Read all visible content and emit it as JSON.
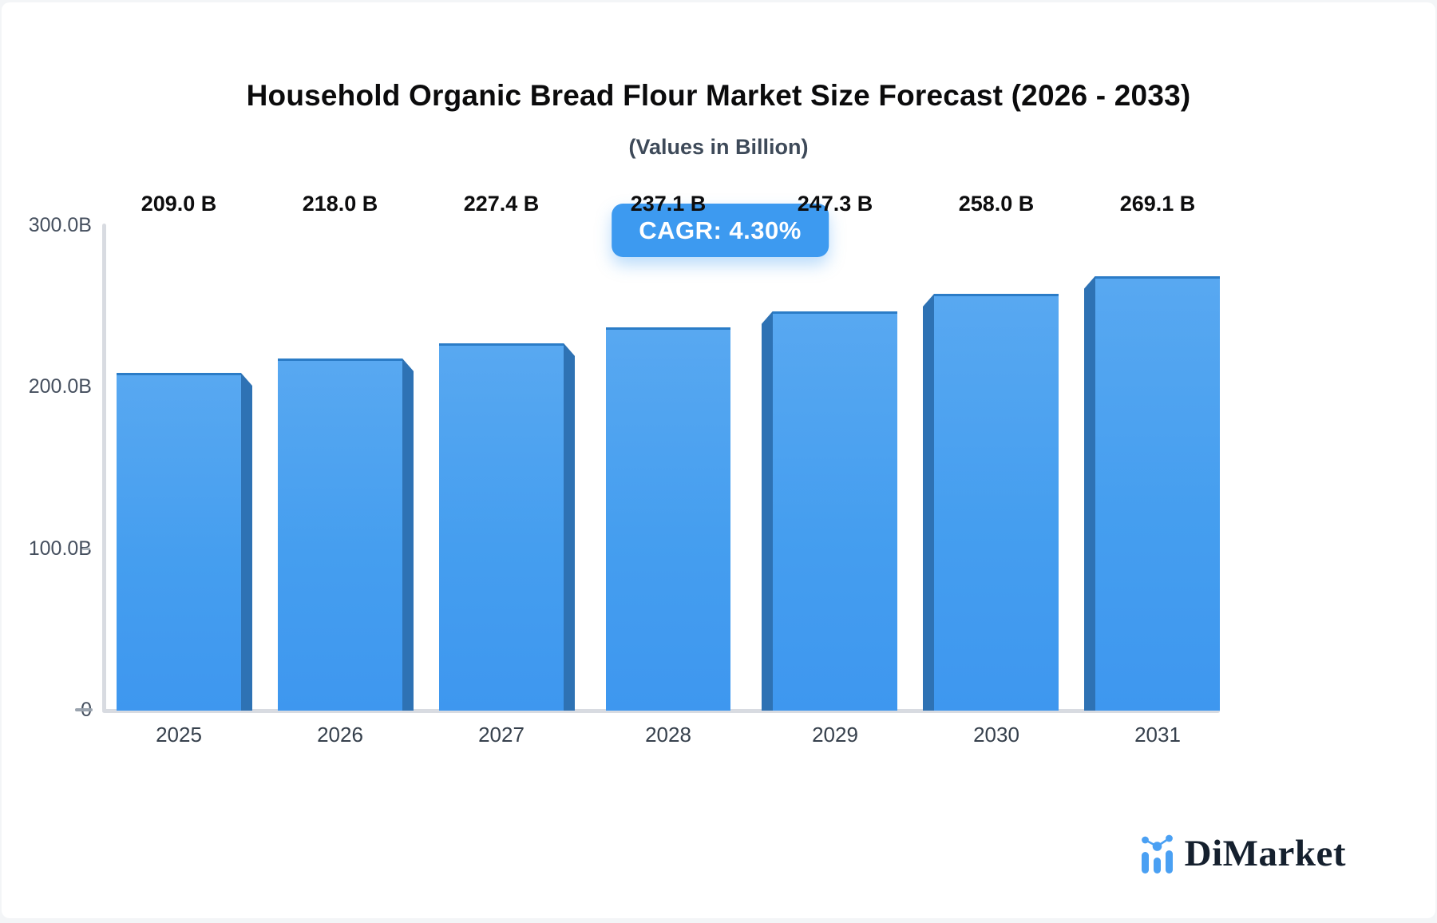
{
  "title": "Household Organic Bread Flour Market Size Forecast (2026 - 2033)",
  "subtitle": "(Values in Billion)",
  "cagr_badge": "CAGR: 4.30%",
  "chart_data": {
    "type": "bar",
    "categories": [
      "2025",
      "2026",
      "2027",
      "2028",
      "2029",
      "2030",
      "2031"
    ],
    "values": [
      209.0,
      218.0,
      227.4,
      237.1,
      247.3,
      258.0,
      269.1
    ],
    "value_labels": [
      "209.0 B",
      "218.0 B",
      "227.4 B",
      "237.1 B",
      "247.3 B",
      "258.0 B",
      "269.1 B"
    ],
    "unit": "Billion",
    "ylim": [
      0,
      300
    ],
    "yticks": [
      {
        "label": "300.0B",
        "value": 300
      },
      {
        "label": "200.0B",
        "value": 200
      },
      {
        "label": "100.0B",
        "value": 100
      },
      {
        "label": "0",
        "value": 0
      }
    ],
    "grid": false,
    "legend_position": "none",
    "cagr": "4.30%",
    "colors": {
      "bar_face_top": "#58A8F1",
      "bar_face_bottom": "#3E97EF",
      "bar_bevel": "#2E72B4",
      "bar_top_edge": "#2B7CC7",
      "badge_bg": "#3D9AF0",
      "axis": "#D8DBE1"
    }
  },
  "branding": {
    "logo_text": "DiMarket",
    "logo_icon": "mini-bar-chart-icon"
  }
}
